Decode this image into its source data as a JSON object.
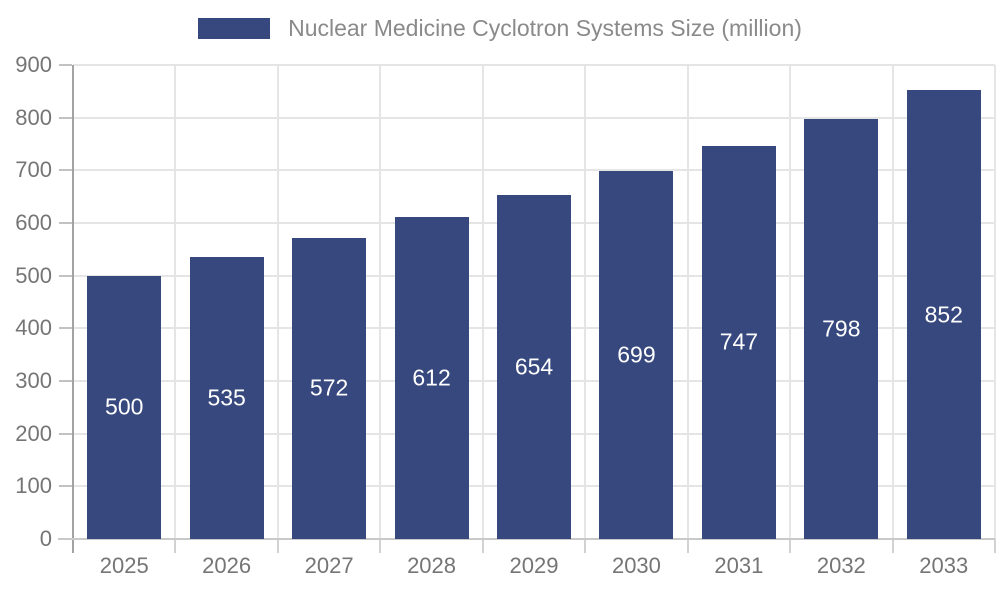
{
  "legend": {
    "label": "Nuclear Medicine Cyclotron Systems Size (million)"
  },
  "colors": {
    "background": "#ffffff",
    "bar": "#36487e",
    "bar_label": "#ffffff",
    "grid_line": "#e5e5e5",
    "y_axis_line": "#a3a3a3",
    "x_axis_line": "#c9c9c9",
    "y_tick_mark": "#c2c2c2",
    "x_tick_mark": "#d2d2d2",
    "axis_label": "#757575",
    "legend_text": "#8a8a8a"
  },
  "chart_data": {
    "type": "bar",
    "title": "Nuclear Medicine Cyclotron Systems Size (million)",
    "categories": [
      "2025",
      "2026",
      "2027",
      "2028",
      "2029",
      "2030",
      "2031",
      "2032",
      "2033"
    ],
    "series": [
      {
        "name": "Nuclear Medicine Cyclotron Systems Size (million)",
        "values": [
          500,
          535,
          572,
          612,
          654,
          699,
          747,
          798,
          852
        ]
      }
    ],
    "xlabel": "",
    "ylabel": "",
    "ylim": [
      0,
      900
    ],
    "yticks": [
      0,
      100,
      200,
      300,
      400,
      500,
      600,
      700,
      800,
      900
    ],
    "grid": true,
    "legend_position": "top",
    "bar_labels_shown": true,
    "bar_label_position": "inside-center"
  }
}
